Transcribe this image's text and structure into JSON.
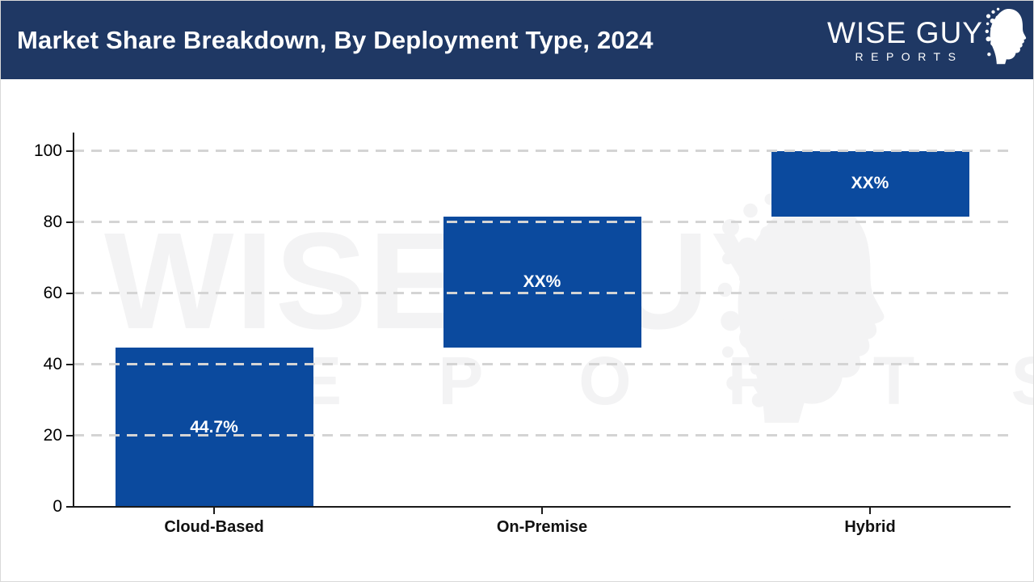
{
  "header": {
    "title": "Market Share Breakdown, By Deployment Type, 2024",
    "logo": {
      "brand_top": "WISE GUY",
      "brand_bottom": "REPORTS"
    }
  },
  "watermark": {
    "line1": "WISE GUY",
    "line2": "R E P O R T S"
  },
  "chart_data": {
    "type": "bar",
    "variant": "stacked_waterfall_segments",
    "title": "Market Share Breakdown, By Deployment Type, 2024",
    "categories": [
      "Cloud-Based",
      "On-Premise",
      "Hybrid"
    ],
    "series": [
      {
        "name": "Cloud-Based",
        "start": 0,
        "end": 44.7,
        "label": "44.7%"
      },
      {
        "name": "On-Premise",
        "start": 44.7,
        "end": 81.4,
        "label": "XX%"
      },
      {
        "name": "Hybrid",
        "start": 81.4,
        "end": 100,
        "label": "XX%"
      }
    ],
    "xlabel": "",
    "ylabel": "",
    "ylim": [
      0,
      100
    ],
    "yticks": [
      0,
      20,
      40,
      60,
      80,
      100
    ],
    "grid": "horizontal-dashed",
    "legend": "none"
  },
  "colors": {
    "header_bg": "#1f3864",
    "bar": "#0b4a9e",
    "grid": "#d4d4d4",
    "axis": "#1a1a1a",
    "watermark": "#f3f3f4",
    "canvas_border": "#d9d9d9"
  }
}
